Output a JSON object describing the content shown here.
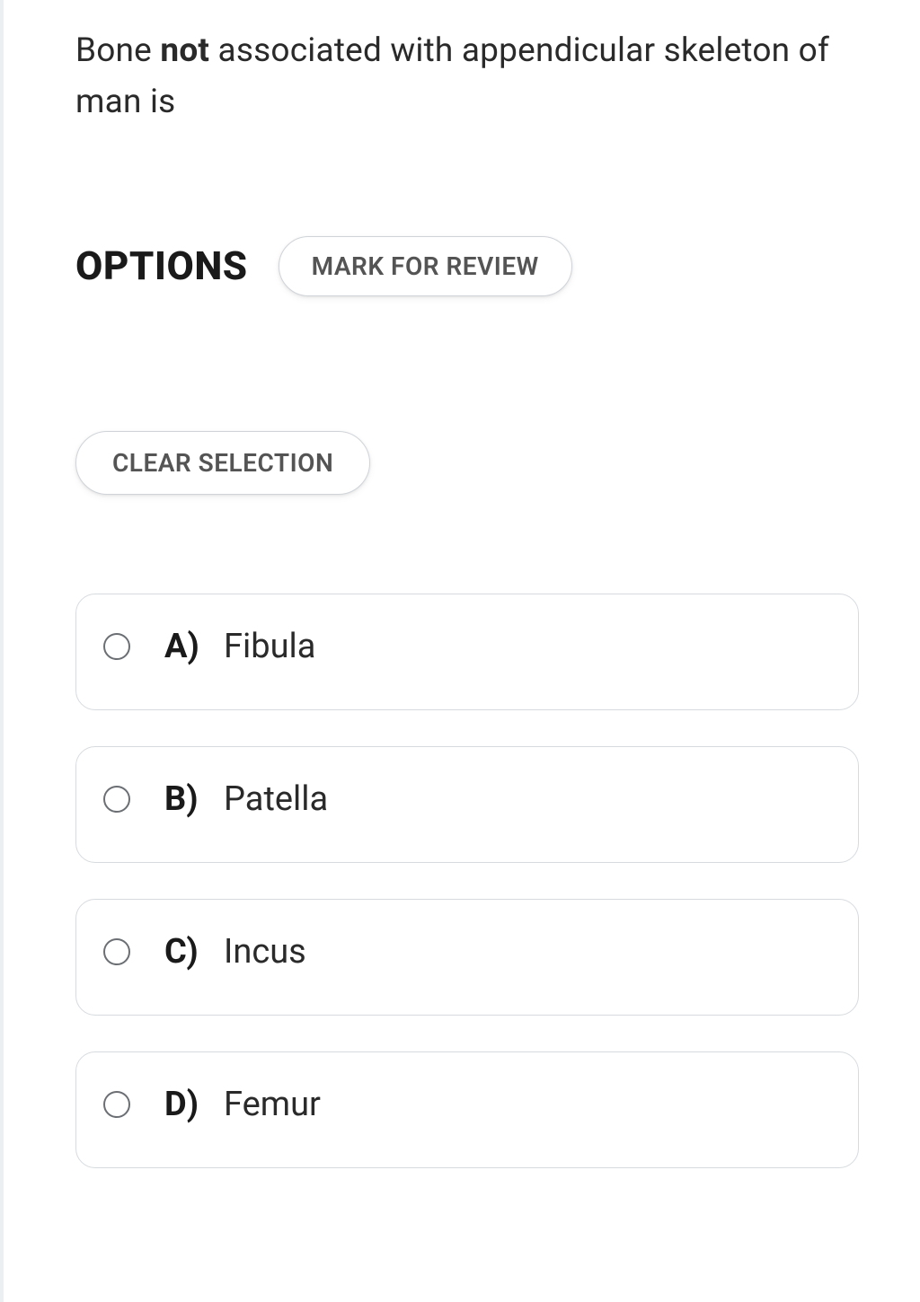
{
  "question": {
    "prefix": "Bone ",
    "bold": "not",
    "suffix": " associated with appendicular skeleton of man is"
  },
  "options_title": "OPTIONS",
  "mark_for_review_label": "MARK FOR REVIEW",
  "clear_selection_label": "CLEAR SELECTION",
  "answers": [
    {
      "letter": "A)",
      "text": "Fibula"
    },
    {
      "letter": "B)",
      "text": "Patella"
    },
    {
      "letter": "C)",
      "text": "Incus"
    },
    {
      "letter": "D)",
      "text": "Femur"
    }
  ],
  "colors": {
    "border": "#d7dbdf",
    "text": "#2a2a2a",
    "pill_text": "#545454",
    "radio_border": "#6b6f73"
  }
}
